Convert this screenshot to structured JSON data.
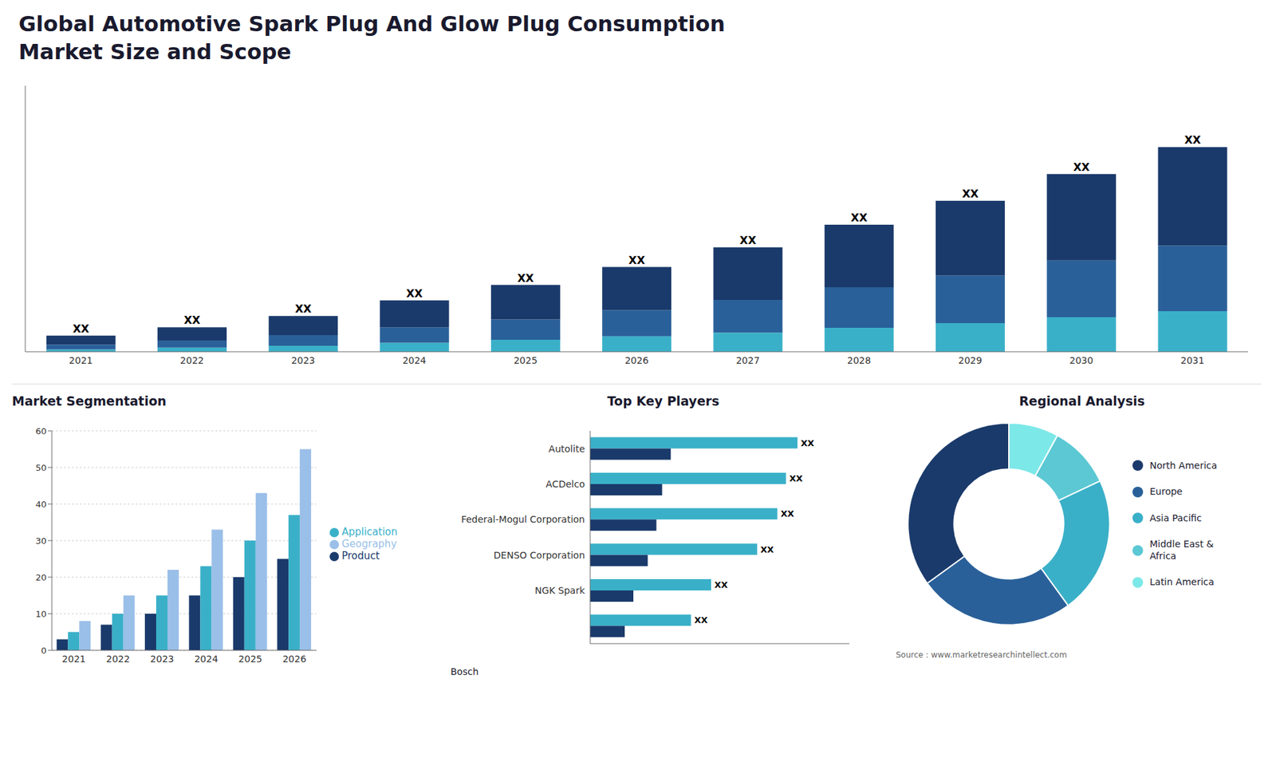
{
  "chart_data": [
    {
      "type": "bar",
      "title": "Global Automotive Spark Plug And Glow Plug Consumption",
      "subtitle": "Market Size and Scope",
      "stacked": true,
      "grid": false,
      "tick_labels": "x",
      "categories": [
        "2021",
        "2022",
        "2023",
        "2024",
        "2025",
        "2026",
        "2027",
        "2028",
        "2029",
        "2030",
        "2031"
      ],
      "ylim": [
        0,
        44.59
      ],
      "series": [
        {
          "color": "#3ab0c8",
          "values": [
            0.4,
            0.7,
            1.0,
            1.5,
            2.0,
            2.6,
            3.2,
            4.0,
            4.8,
            5.8,
            6.8
          ]
        },
        {
          "color": "#2a6099",
          "values": [
            0.8,
            1.2,
            1.8,
            2.6,
            3.4,
            4.4,
            5.5,
            6.8,
            8.0,
            9.5,
            11.0
          ]
        },
        {
          "color": "#1a3a6b",
          "values": [
            1.5,
            2.2,
            3.2,
            4.5,
            5.8,
            7.2,
            8.8,
            10.5,
            12.5,
            14.5,
            16.5
          ],
          "value_labels": [
            "XX",
            "XX",
            "XX",
            "XX",
            "XX",
            "XX",
            "XX",
            "XX",
            "XX",
            "XX",
            "XX"
          ]
        }
      ]
    },
    {
      "type": "bar",
      "title": "Market Segmentation",
      "grid": true,
      "legend": "right",
      "categories": [
        "2021",
        "2022",
        "2023",
        "2024",
        "2025",
        "2026"
      ],
      "ylim": [
        0,
        60
      ],
      "yticks": [
        0,
        10,
        20,
        30,
        40,
        50,
        60
      ],
      "series": [
        {
          "name": "Product",
          "color": "#1a3a6b",
          "values": [
            3,
            7,
            10,
            15,
            20,
            25
          ]
        },
        {
          "name": "Application",
          "color": "#3ab0c8",
          "values": [
            5,
            10,
            15,
            23,
            30,
            37
          ]
        },
        {
          "name": "Geography",
          "color": "#9abfe8",
          "values": [
            8,
            15,
            22,
            33,
            43,
            55
          ]
        }
      ]
    },
    {
      "type": "bar",
      "title": "Top Key Players",
      "orientation": "horizontal",
      "grid": false,
      "tick_labels": "y",
      "categories": [
        "Autolite",
        "ACDelco",
        "Federal-Mogul Corporation",
        "DENSO Corporation",
        "NGK Spark",
        null
      ],
      "xlim": [
        0,
        9.0
      ],
      "annotations": [
        "Bosch"
      ],
      "series": [
        {
          "color": "#3ab0c8",
          "values": [
            7.2,
            6.8,
            6.5,
            5.8,
            4.2,
            3.5
          ],
          "value_labels": [
            "XX",
            "XX",
            "XX",
            "XX",
            "XX",
            "XX"
          ]
        },
        {
          "color": "#1a3a6b",
          "values": [
            2.8,
            2.5,
            2.3,
            2.0,
            1.5,
            1.2
          ]
        }
      ]
    },
    {
      "type": "pie",
      "title": "Regional Analysis",
      "legend": "right",
      "categories": [
        "Latin America",
        "Middle East &\nAfrica",
        "Asia Pacific",
        "Europe",
        "North America"
      ],
      "values": [
        8,
        10,
        22,
        25,
        35
      ],
      "colors": [
        "#7de8e8",
        "#5bc8d4",
        "#3ab0c8",
        "#2a6099",
        "#1a3a6b"
      ],
      "annotations": [
        "Source : www.marketresearchintellect.com"
      ]
    }
  ]
}
